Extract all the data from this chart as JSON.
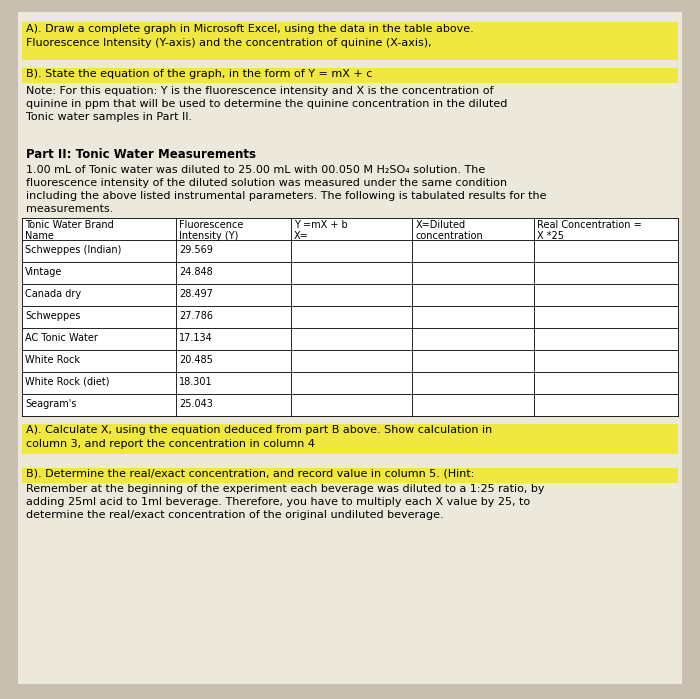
{
  "bg_color": "#c8bfb0",
  "paper_color": "#ede8dc",
  "highlight_color": "#f0e840",
  "section_A_line1": "A). Draw a complete graph in Microsoft Excel, using the data in the table above.",
  "section_A_line2": "Fluorescence Intensity (Y-axis) and the concentration of quinine (X-axis),",
  "section_B_line1": "B). State the equation of the graph, in the form of Y = mX + c",
  "section_B_note1": "Note: For this equation: Y is the fluorescence intensity and X is the concentration of",
  "section_B_note2": "quinine in ppm that will be used to determine the quinine concentration in the diluted",
  "section_B_note3": "Tonic water samples in Part II.",
  "part2_title": "Part II: Tonic Water Measurements",
  "part2_text1": "1.00 mL of Tonic water was diluted to 25.00 mL with 00.050 M H₂SO₄ solution. The",
  "part2_text2": "fluorescence intensity of the diluted solution was measured under the same condition",
  "part2_text3": "including the above listed instrumental parameters. The following is tabulated results for the",
  "part2_text4": "measurements.",
  "table_headers": [
    "Tonic Water Brand\nName",
    "Fluorescence\nIntensity (Y)",
    "Y =mX + b\nX=",
    "X=Diluted\nconcentration",
    "Real Concentration =\nX *25"
  ],
  "table_data": [
    [
      "Schweppes (Indian)",
      "29.569",
      "",
      "",
      ""
    ],
    [
      "Vintage",
      "24.848",
      "",
      "",
      ""
    ],
    [
      "Canada dry",
      "28.497",
      "",
      "",
      ""
    ],
    [
      "Schweppes",
      "27.786",
      "",
      "",
      ""
    ],
    [
      "AC Tonic Water",
      "17.134",
      "",
      "",
      ""
    ],
    [
      "White Rock",
      "20.485",
      "",
      "",
      ""
    ],
    [
      "White Rock (diet)",
      "18.301",
      "",
      "",
      ""
    ],
    [
      "Seagram's",
      "25.043",
      "",
      "",
      ""
    ]
  ],
  "footer_A_line1": "A). Calculate X, using the equation deduced from part B above. Show calculation in",
  "footer_A_line2": "column 3, and report the concentration in column 4",
  "footer_B_line1": "B). Determine the real/exact concentration, and record value in column 5. (Hint:",
  "footer_B_line2": "Remember at the beginning of the experiment each beverage was diluted to a 1:25 ratio, by",
  "footer_B_line3": "adding 25ml acid to 1ml beverage. Therefore, you have to multiply each X value by 25, to",
  "footer_B_line4": "determine the real/exact concentration of the original undiluted beverage."
}
